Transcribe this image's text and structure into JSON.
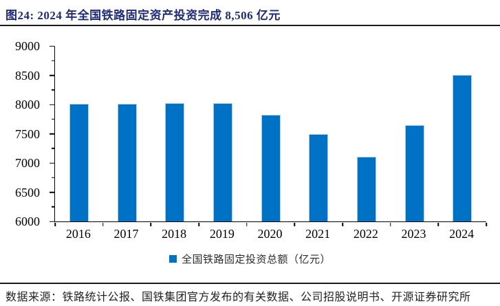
{
  "figure": {
    "title": "图24:  2024 年全国铁路固定资产投资完成 8,506 亿元",
    "source": "数据来源：铁路统计公报、国铁集团官方发布的有关数据、公司招股说明书、开源证券研究所"
  },
  "chart_data": {
    "type": "bar",
    "title": "2024 年全国铁路固定资产投资完成 8,506 亿元",
    "categories": [
      "2016",
      "2017",
      "2018",
      "2019",
      "2020",
      "2021",
      "2022",
      "2023",
      "2024"
    ],
    "series": [
      {
        "name": "全国铁路固定投资总额（亿元）",
        "values": [
          8015,
          8010,
          8028,
          8029,
          7819,
          7489,
          7109,
          7645,
          8506
        ]
      }
    ],
    "xlabel": "",
    "ylabel": "",
    "ylim": [
      6000,
      9000
    ],
    "yticks": [
      6000,
      6500,
      7000,
      7500,
      8000,
      8500,
      9000
    ],
    "ytick_minor_step": 250,
    "grid": false,
    "legend_position": "bottom",
    "bar_color": "#0072c6"
  },
  "colors": {
    "bar": "#0072c6",
    "bar_edge": "#aecbe8",
    "title_text": "#1e2a7d",
    "axis": "#000000",
    "divider": "#1a1a1a"
  }
}
